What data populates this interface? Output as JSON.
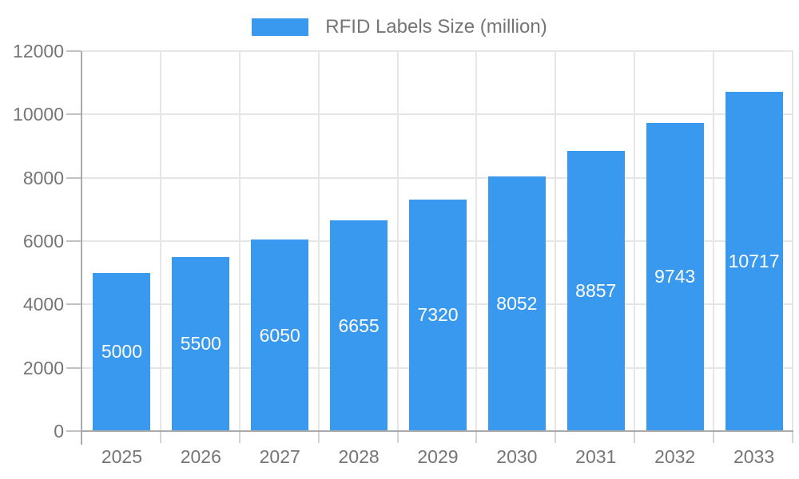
{
  "legend": {
    "label": "RFID Labels Size (million)"
  },
  "chart_data": {
    "type": "bar",
    "title": "RFID Labels Size (million)",
    "categories": [
      "2025",
      "2026",
      "2027",
      "2028",
      "2029",
      "2030",
      "2031",
      "2032",
      "2033"
    ],
    "values": [
      5000,
      5500,
      6050,
      6655,
      7320,
      8052,
      8857,
      9743,
      10717
    ],
    "series_name": "RFID Labels Size (million)",
    "xlabel": "",
    "ylabel": "",
    "ylim": [
      0,
      12000
    ],
    "ytick_step": 2000,
    "ytick_labels": [
      "0",
      "2000",
      "4000",
      "6000",
      "8000",
      "10000",
      "12000"
    ],
    "grid": true,
    "legend_position": "top-center",
    "value_labels": "inside-center"
  },
  "colors": {
    "bar": "#3999ee",
    "bar_label_text": "#ffffff",
    "axis_line": "#ababab",
    "gridline": "#e6e6e6",
    "tick": "#c2c2c2",
    "label_text": "#757575",
    "background": "#ffffff"
  }
}
